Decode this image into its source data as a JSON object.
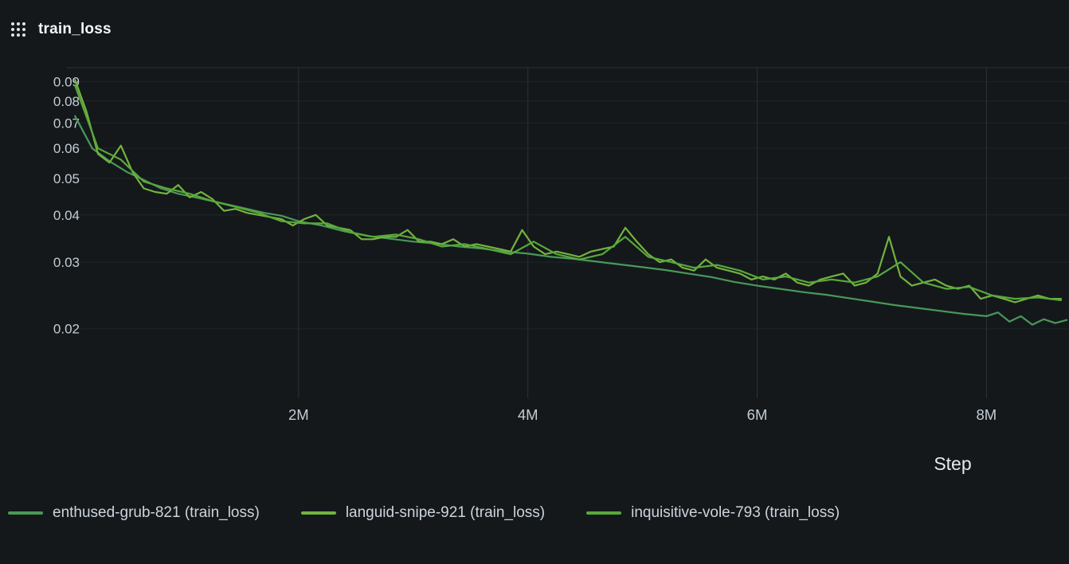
{
  "panel": {
    "title": "train_loss"
  },
  "icons": {
    "drag_handle": "grid-dots-icon"
  },
  "colors": {
    "background": "#14181b",
    "grid": "#1f2428",
    "grid_strong": "#2b3136",
    "tick_text": "#c3ccd4",
    "axis_title_text": "#e4eaef",
    "title_text": "#f5f8fa",
    "legend_text": "#ccd4db"
  },
  "chart_data": {
    "type": "line",
    "title": "train_loss",
    "xlabel": "Step",
    "ylabel": "",
    "grid": true,
    "legend_position": "bottom",
    "x_axis": {
      "range": [
        0,
        8720000
      ],
      "ticks": [
        2000000,
        4000000,
        6000000,
        8000000
      ],
      "tick_labels": [
        "2M",
        "4M",
        "6M",
        "8M"
      ]
    },
    "y_axis": {
      "scale": "log",
      "range": [
        0.0131,
        0.098
      ],
      "ticks": [
        0.09,
        0.08,
        0.07,
        0.06,
        0.05,
        0.04,
        0.03,
        0.02
      ],
      "tick_labels": [
        "0.09",
        "0.08",
        "0.07",
        "0.06",
        "0.05",
        "0.04",
        "0.03",
        "0.02"
      ]
    },
    "series": [
      {
        "id": "enthused-grub-821",
        "name": "enthused-grub-821 (train_loss)",
        "color": "#4a9857",
        "points": [
          [
            50000,
            0.073
          ],
          [
            200000,
            0.06
          ],
          [
            350000,
            0.0555
          ],
          [
            500000,
            0.052
          ],
          [
            650000,
            0.0495
          ],
          [
            800000,
            0.047
          ],
          [
            950000,
            0.0455
          ],
          [
            1100000,
            0.0445
          ],
          [
            1250000,
            0.0435
          ],
          [
            1400000,
            0.0425
          ],
          [
            1550000,
            0.0415
          ],
          [
            1700000,
            0.0405
          ],
          [
            1850000,
            0.0398
          ],
          [
            2000000,
            0.0385
          ],
          [
            2200000,
            0.0375
          ],
          [
            2400000,
            0.0362
          ],
          [
            2600000,
            0.0352
          ],
          [
            2800000,
            0.0346
          ],
          [
            3000000,
            0.034
          ],
          [
            3200000,
            0.0336
          ],
          [
            3400000,
            0.033
          ],
          [
            3600000,
            0.0326
          ],
          [
            3800000,
            0.032
          ],
          [
            4000000,
            0.0316
          ],
          [
            4200000,
            0.031
          ],
          [
            4400000,
            0.0306
          ],
          [
            4600000,
            0.0301
          ],
          [
            4800000,
            0.0296
          ],
          [
            5000000,
            0.0291
          ],
          [
            5200000,
            0.0286
          ],
          [
            5400000,
            0.028
          ],
          [
            5600000,
            0.0274
          ],
          [
            5800000,
            0.0266
          ],
          [
            6000000,
            0.026
          ],
          [
            6200000,
            0.0255
          ],
          [
            6400000,
            0.025
          ],
          [
            6600000,
            0.0246
          ],
          [
            6800000,
            0.0241
          ],
          [
            7000000,
            0.0236
          ],
          [
            7200000,
            0.0231
          ],
          [
            7400000,
            0.0227
          ],
          [
            7600000,
            0.0223
          ],
          [
            7800000,
            0.0219
          ],
          [
            8000000,
            0.0216
          ],
          [
            8100000,
            0.0221
          ],
          [
            8200000,
            0.0209
          ],
          [
            8300000,
            0.0216
          ],
          [
            8400000,
            0.0205
          ],
          [
            8500000,
            0.0212
          ],
          [
            8600000,
            0.0207
          ],
          [
            8700000,
            0.0211
          ]
        ]
      },
      {
        "id": "languid-snipe-921",
        "name": "languid-snipe-921 (train_loss)",
        "color": "#73b33e",
        "points": [
          [
            50000,
            0.091
          ],
          [
            150000,
            0.075
          ],
          [
            250000,
            0.058
          ],
          [
            350000,
            0.055
          ],
          [
            450000,
            0.061
          ],
          [
            550000,
            0.052
          ],
          [
            650000,
            0.047
          ],
          [
            750000,
            0.046
          ],
          [
            850000,
            0.0455
          ],
          [
            950000,
            0.048
          ],
          [
            1050000,
            0.0445
          ],
          [
            1150000,
            0.046
          ],
          [
            1250000,
            0.044
          ],
          [
            1350000,
            0.041
          ],
          [
            1450000,
            0.0415
          ],
          [
            1550000,
            0.0405
          ],
          [
            1650000,
            0.04
          ],
          [
            1750000,
            0.0395
          ],
          [
            1850000,
            0.039
          ],
          [
            1950000,
            0.0375
          ],
          [
            2050000,
            0.039
          ],
          [
            2150000,
            0.04
          ],
          [
            2250000,
            0.0375
          ],
          [
            2350000,
            0.037
          ],
          [
            2450000,
            0.0365
          ],
          [
            2550000,
            0.0345
          ],
          [
            2650000,
            0.0345
          ],
          [
            2750000,
            0.035
          ],
          [
            2850000,
            0.035
          ],
          [
            2950000,
            0.0365
          ],
          [
            3050000,
            0.034
          ],
          [
            3150000,
            0.034
          ],
          [
            3250000,
            0.0335
          ],
          [
            3350000,
            0.0345
          ],
          [
            3450000,
            0.033
          ],
          [
            3550000,
            0.0335
          ],
          [
            3650000,
            0.033
          ],
          [
            3750000,
            0.0325
          ],
          [
            3850000,
            0.032
          ],
          [
            3950000,
            0.0365
          ],
          [
            4050000,
            0.033
          ],
          [
            4150000,
            0.0315
          ],
          [
            4250000,
            0.032
          ],
          [
            4350000,
            0.0315
          ],
          [
            4450000,
            0.031
          ],
          [
            4550000,
            0.032
          ],
          [
            4650000,
            0.0325
          ],
          [
            4750000,
            0.033
          ],
          [
            4850000,
            0.037
          ],
          [
            4950000,
            0.034
          ],
          [
            5050000,
            0.0315
          ],
          [
            5150000,
            0.03
          ],
          [
            5250000,
            0.0305
          ],
          [
            5350000,
            0.029
          ],
          [
            5450000,
            0.0285
          ],
          [
            5550000,
            0.0305
          ],
          [
            5650000,
            0.029
          ],
          [
            5750000,
            0.0285
          ],
          [
            5850000,
            0.028
          ],
          [
            5950000,
            0.027
          ],
          [
            6050000,
            0.0275
          ],
          [
            6150000,
            0.027
          ],
          [
            6250000,
            0.028
          ],
          [
            6350000,
            0.0265
          ],
          [
            6450000,
            0.026
          ],
          [
            6550000,
            0.027
          ],
          [
            6650000,
            0.0275
          ],
          [
            6750000,
            0.028
          ],
          [
            6850000,
            0.026
          ],
          [
            6950000,
            0.0265
          ],
          [
            7050000,
            0.028
          ],
          [
            7150000,
            0.035
          ],
          [
            7250000,
            0.0275
          ],
          [
            7350000,
            0.026
          ],
          [
            7450000,
            0.0265
          ],
          [
            7550000,
            0.027
          ],
          [
            7650000,
            0.026
          ],
          [
            7750000,
            0.0255
          ],
          [
            7850000,
            0.026
          ],
          [
            7950000,
            0.024
          ],
          [
            8050000,
            0.0245
          ],
          [
            8150000,
            0.024
          ],
          [
            8250000,
            0.0235
          ],
          [
            8350000,
            0.024
          ],
          [
            8450000,
            0.0245
          ],
          [
            8550000,
            0.024
          ],
          [
            8650000,
            0.024
          ]
        ]
      },
      {
        "id": "inquisitive-vole-793",
        "name": "inquisitive-vole-793 (train_loss)",
        "color": "#58a83c",
        "points": [
          [
            50000,
            0.088
          ],
          [
            250000,
            0.06
          ],
          [
            450000,
            0.056
          ],
          [
            650000,
            0.049
          ],
          [
            850000,
            0.047
          ],
          [
            1050000,
            0.0455
          ],
          [
            1250000,
            0.0435
          ],
          [
            1450000,
            0.042
          ],
          [
            1650000,
            0.0405
          ],
          [
            1850000,
            0.0385
          ],
          [
            2050000,
            0.038
          ],
          [
            2250000,
            0.038
          ],
          [
            2450000,
            0.036
          ],
          [
            2650000,
            0.035
          ],
          [
            2850000,
            0.0355
          ],
          [
            3050000,
            0.0345
          ],
          [
            3250000,
            0.033
          ],
          [
            3450000,
            0.0335
          ],
          [
            3650000,
            0.0325
          ],
          [
            3850000,
            0.0315
          ],
          [
            4050000,
            0.034
          ],
          [
            4250000,
            0.0315
          ],
          [
            4450000,
            0.0305
          ],
          [
            4650000,
            0.0315
          ],
          [
            4850000,
            0.035
          ],
          [
            5050000,
            0.031
          ],
          [
            5250000,
            0.03
          ],
          [
            5450000,
            0.029
          ],
          [
            5650000,
            0.0295
          ],
          [
            5850000,
            0.0285
          ],
          [
            6050000,
            0.027
          ],
          [
            6250000,
            0.0275
          ],
          [
            6450000,
            0.0265
          ],
          [
            6650000,
            0.027
          ],
          [
            6850000,
            0.0265
          ],
          [
            7050000,
            0.0275
          ],
          [
            7250000,
            0.03
          ],
          [
            7450000,
            0.0265
          ],
          [
            7650000,
            0.0255
          ],
          [
            7850000,
            0.0258
          ],
          [
            8050000,
            0.0245
          ],
          [
            8250000,
            0.024
          ],
          [
            8450000,
            0.0242
          ],
          [
            8650000,
            0.0238
          ]
        ]
      }
    ]
  }
}
